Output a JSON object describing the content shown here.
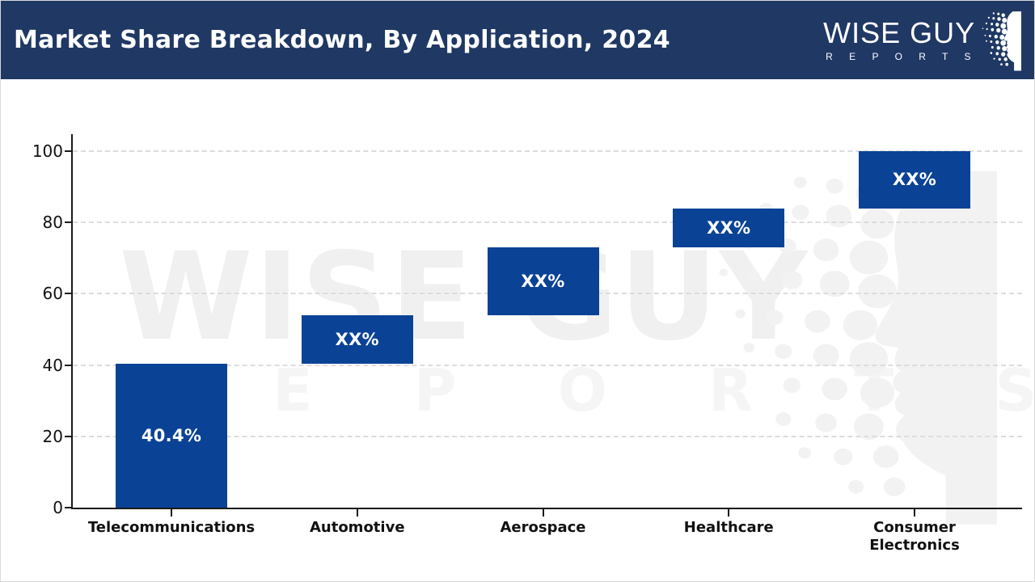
{
  "header": {
    "title": "Market Share Breakdown, By Application, 2024",
    "bg_color": "#1F3864",
    "logo": {
      "name": "WISE GUY",
      "tagline": "R E P O R T S"
    }
  },
  "watermark": {
    "wordmark": "WISE GUY",
    "tagline": "R E P O R T S"
  },
  "chart_data": {
    "type": "bar",
    "variant": "waterfall",
    "title": "Market Share Breakdown, By Application, 2024",
    "categories": [
      "Telecommunications",
      "Automotive",
      "Aerospace",
      "Healthcare",
      "Consumer\nElectronics"
    ],
    "segments": [
      {
        "category": "Telecommunications",
        "start": 0,
        "end": 40.4,
        "value": 40.4,
        "label": "40.4%"
      },
      {
        "category": "Automotive",
        "start": 40.4,
        "end": 54,
        "value": 13.6,
        "label": "XX%"
      },
      {
        "category": "Aerospace",
        "start": 54,
        "end": 73,
        "value": 19,
        "label": "XX%"
      },
      {
        "category": "Healthcare",
        "start": 73,
        "end": 84,
        "value": 11,
        "label": "XX%"
      },
      {
        "category": "Consumer Electronics",
        "start": 84,
        "end": 100,
        "value": 16,
        "label": "XX%"
      }
    ],
    "xlabel": "",
    "ylabel": "",
    "ylim": [
      0,
      100
    ],
    "yticks": [
      0,
      20,
      40,
      60,
      80,
      100
    ],
    "grid": "horizontal-dashed",
    "legend": "none",
    "bar_color": "#0A4296",
    "bar_label_color": "#FFFFFF",
    "axis_color": "#1A1A1A",
    "gridline_color": "#DCDCDC",
    "tick_label_color": "#111111"
  }
}
